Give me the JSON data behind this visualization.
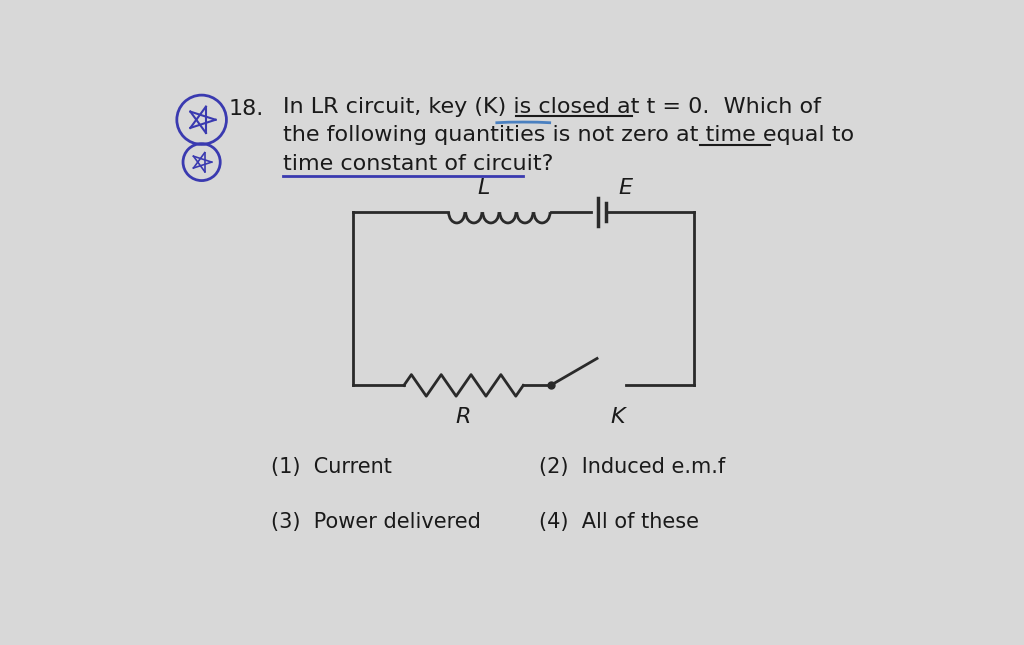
{
  "background_color": "#d8d8d8",
  "text_color": "#1a1a1a",
  "circuit_color": "#2a2a2a",
  "font_size_question": 16,
  "font_size_options": 15,
  "font_size_labels": 14,
  "question_number": "18.",
  "line1": "In LR circuit, key (K) is closed at t = 0.  Which of",
  "line2": "the following quantities is not zero at time equal to",
  "line3": "time constant of circuit?",
  "options": [
    "(1)  Current",
    "(2)  Induced e.m.f",
    "(3)  Power delivered",
    "(4)  All of these"
  ],
  "L_label": "L",
  "E_label": "E",
  "R_label": "R",
  "K_label": "K",
  "circle_color": "#3a3ab0",
  "underline_color": "#3a3ab0",
  "curve_color": "#4a80c0"
}
